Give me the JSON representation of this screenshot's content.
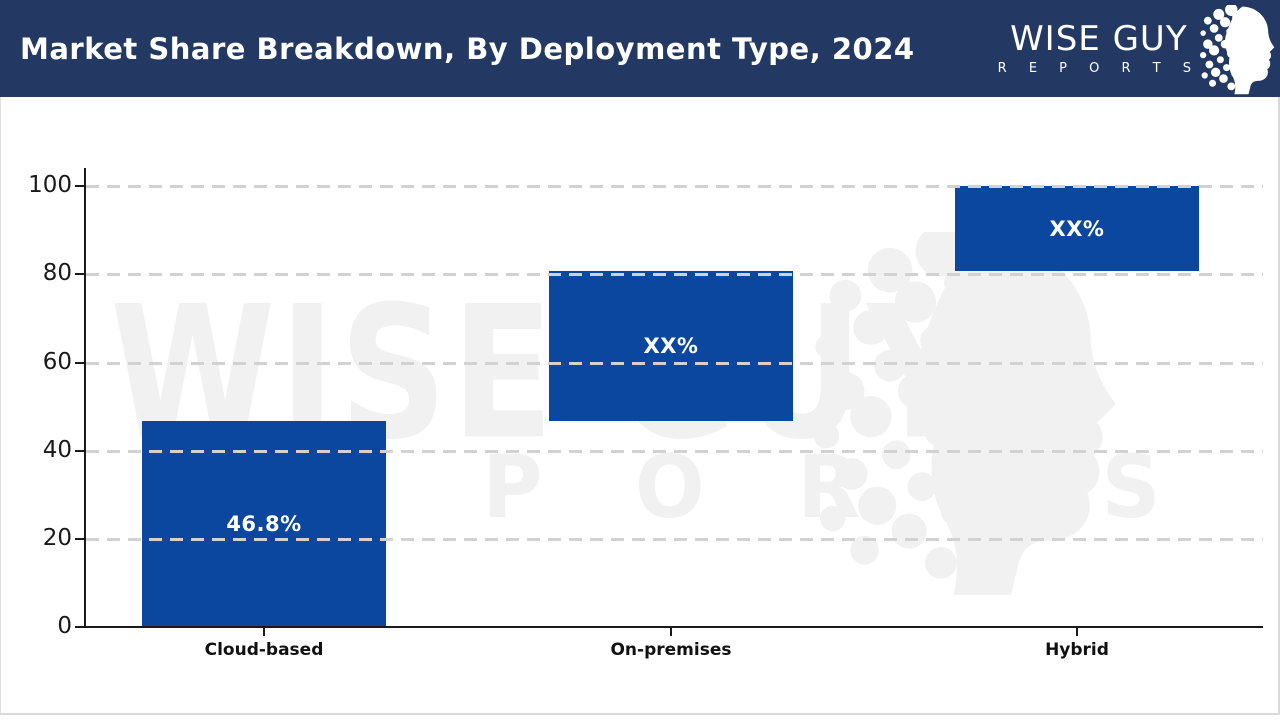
{
  "header": {
    "title": "Market Share Breakdown, By Deployment Type, 2024",
    "brand": {
      "name": "WISE GUY",
      "tagline": "R E P O R T S"
    }
  },
  "watermark": {
    "line1": "WISE GUY",
    "line2": "R E P O R T S"
  },
  "chart_data": {
    "type": "bar",
    "subtype": "stacked-waterfall",
    "title": "Market Share Breakdown, By Deployment Type, 2024",
    "categories": [
      "Cloud-based",
      "On-premises",
      "Hybrid"
    ],
    "segments": [
      {
        "category": "Cloud-based",
        "start": 0,
        "end": 46.8,
        "label": "46.8%"
      },
      {
        "category": "On-premises",
        "start": 46.8,
        "end": 80.8,
        "label": "XX%"
      },
      {
        "category": "Hybrid",
        "start": 80.8,
        "end": 100,
        "label": "XX%"
      }
    ],
    "yticks": [
      0,
      20,
      40,
      60,
      80,
      100
    ],
    "ytick_labels": [
      "0",
      "20",
      "40",
      "60",
      "80",
      "100"
    ],
    "ylim": [
      0,
      105
    ],
    "xlabel": "",
    "ylabel": "",
    "grid": "horizontal-dashed",
    "legend": "none",
    "colors": {
      "bar": "#0B479E",
      "header_bg": "#233963",
      "grid": "#D2D2D2",
      "axis": "#1A1A1A",
      "bar_label": "#FFFFFF",
      "watermark": "#F1F1F2"
    }
  }
}
